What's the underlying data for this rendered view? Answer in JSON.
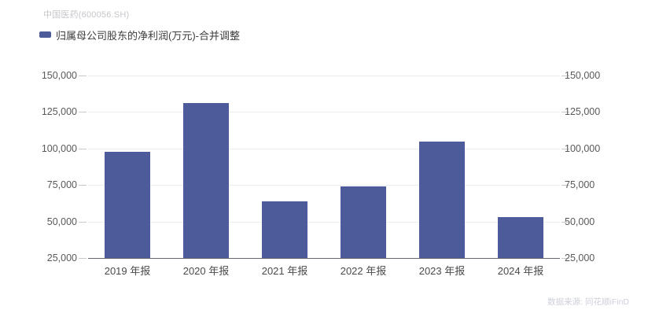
{
  "header": {
    "title": "中国医药(600056.SH)",
    "legend": {
      "label": "归属母公司股东的净利润(万元)-合并调整",
      "marker_color": "#4e5b9b"
    }
  },
  "footer": {
    "source": "数据来源: 同花顺iFinD"
  },
  "colors": {
    "bar": "#4e5b9b",
    "gridline": "#ebebef",
    "axis_baseline": "#63666c",
    "axis_tick": "#c8c9d0",
    "y_label": "#595959",
    "x_label": "#4a4a4a",
    "title": "#c6c7cb",
    "source_text": "#ced0da"
  },
  "chart_data": {
    "type": "bar",
    "title": "中国医药(600056.SH)",
    "series_name": "归属母公司股东的净利润(万元)-合并调整",
    "categories": [
      "2019 年报",
      "2020 年报",
      "2021 年报",
      "2022 年报",
      "2023 年报",
      "2024 年报"
    ],
    "values": [
      98000,
      131000,
      64000,
      74000,
      105000,
      53000
    ],
    "ylim": [
      25000,
      150000
    ],
    "ytick_interval": 25000,
    "ytick_labels_top_to_bottom": [
      "150,000",
      "125,000",
      "100,000",
      "75,000",
      "50,000",
      "25,000"
    ],
    "grid": true,
    "dual_y_axis": true,
    "legend_position": "top-left",
    "bar_color": "#4e5b9b"
  }
}
